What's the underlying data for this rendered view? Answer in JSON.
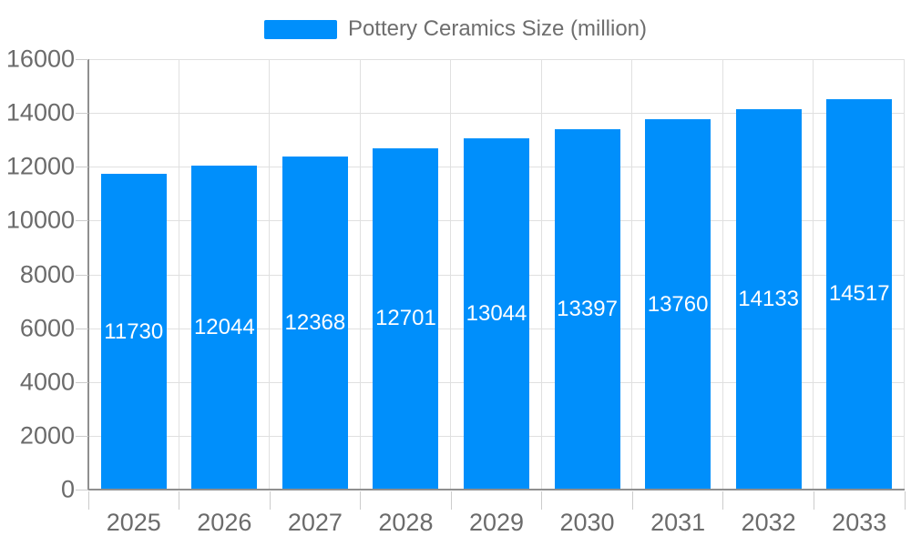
{
  "chart_data": {
    "type": "bar",
    "title": "",
    "xlabel": "",
    "ylabel": "",
    "legend": {
      "label": "Pottery Ceramics Size (million)",
      "position": "top",
      "marker_color": "#008FFB"
    },
    "categories": [
      "2025",
      "2026",
      "2027",
      "2028",
      "2029",
      "2030",
      "2031",
      "2032",
      "2033"
    ],
    "values": [
      11730,
      12044,
      12368,
      12701,
      13044,
      13397,
      13760,
      14133,
      14517
    ],
    "data_labels": [
      "11730",
      "12044",
      "12368",
      "12701",
      "13044",
      "13397",
      "13760",
      "14133",
      "14517"
    ],
    "ylim": [
      0,
      16000
    ],
    "ytick_step": 2000,
    "yticks": [
      0,
      2000,
      4000,
      6000,
      8000,
      10000,
      12000,
      14000,
      16000
    ],
    "grid": true,
    "colors": {
      "bar": "#008FFB",
      "bar_label": "#ffffff",
      "gridline": "#e0e0e0",
      "axis_line": "#8f8f8f",
      "tick": "#cccccc",
      "axis_label": "#6b6b6b",
      "legend_text": "#6e6e6e",
      "background": "#ffffff"
    }
  }
}
